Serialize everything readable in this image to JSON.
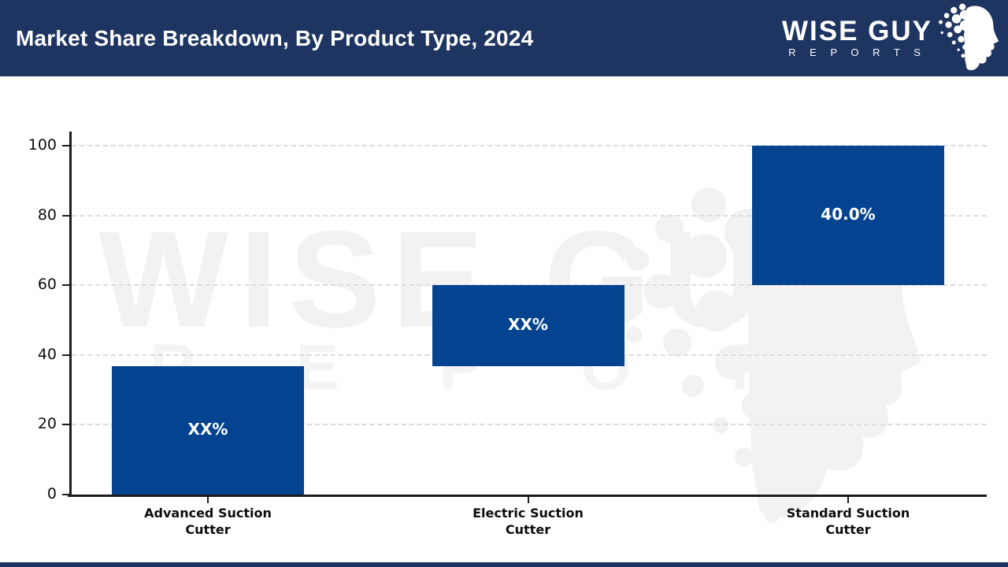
{
  "header": {
    "title": "Market Share Breakdown, By Product Type, 2024",
    "logo_line1": "WISE GUY",
    "logo_line2": "R E P O R T S"
  },
  "watermark": {
    "line1": "WISE GUY",
    "line2": "R E P O R T S"
  },
  "chart_data": {
    "type": "bar",
    "variant": "stacked-percentage-waterfall",
    "title": "Market Share Breakdown, By Product Type, 2024",
    "categories": [
      "Advanced Suction\nCutter",
      "Electric Suction\nCutter",
      "Standard Suction\nCutter"
    ],
    "series": [
      {
        "name": "Advanced Suction Cutter",
        "start": 0,
        "end": 36.7,
        "value": 36.7,
        "label": "XX%"
      },
      {
        "name": "Electric Suction Cutter",
        "start": 36.7,
        "end": 60.0,
        "value": 23.3,
        "label": "XX%"
      },
      {
        "name": "Standard Suction Cutter",
        "start": 60.0,
        "end": 100.0,
        "value": 40.0,
        "label": "40.0%"
      }
    ],
    "xlabel": "",
    "ylabel": "",
    "ylim": [
      0,
      104
    ],
    "yticks": [
      0,
      20,
      40,
      60,
      80,
      100
    ],
    "grid": "horizontal-dashed",
    "legend_position": "none",
    "bar_color": "#04438f",
    "bar_label_color": "#ffffff"
  },
  "colors": {
    "header_bg": "#1e3461",
    "bar": "#04438f",
    "grid": "#dcdcdc",
    "axis": "#1c1c1c",
    "watermark": "#f2f2f2"
  }
}
